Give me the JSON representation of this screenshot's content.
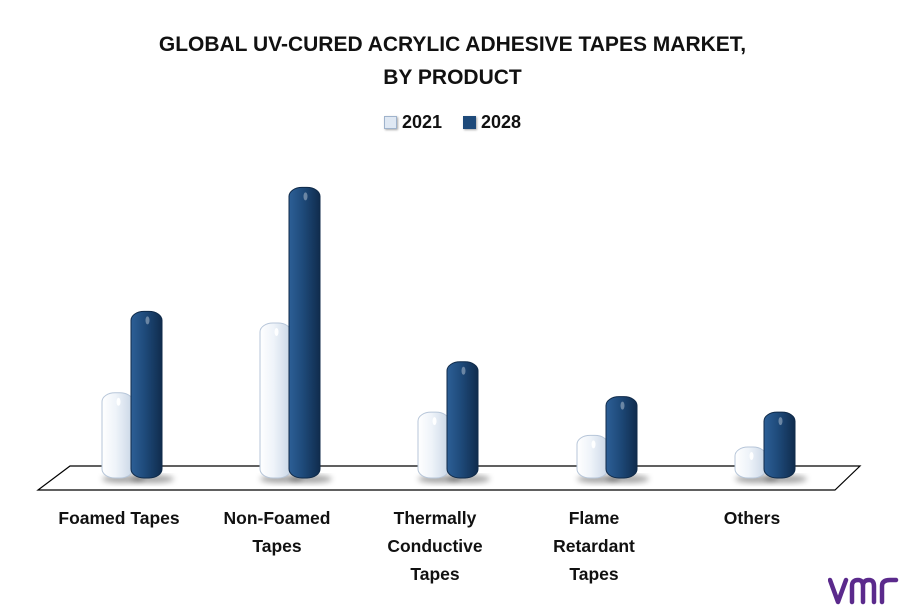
{
  "title_line1": "GLOBAL UV-CURED ACRYLIC ADHESIVE TAPES MARKET,",
  "title_line2": "BY PRODUCT",
  "colors": {
    "series_2021": "#dfe8f3",
    "series_2028": "#1e4a7a",
    "logo": "#5b2a8c"
  },
  "chart_data": {
    "type": "bar",
    "title": "GLOBAL UV-CURED ACRYLIC ADHESIVE TAPES MARKET, BY PRODUCT",
    "categories": [
      "Foamed Tapes",
      "Non-Foamed Tapes",
      "Thermally Conductive Tapes",
      "Flame Retardant Tapes",
      "Others"
    ],
    "category_lines": [
      [
        "Foamed Tapes"
      ],
      [
        "Non-Foamed",
        "Tapes"
      ],
      [
        "Thermally",
        "Conductive",
        "Tapes"
      ],
      [
        "Flame",
        "Retardant",
        "Tapes"
      ],
      [
        "Others"
      ]
    ],
    "series": [
      {
        "name": "2021",
        "values": [
          22,
          40,
          17,
          11,
          8
        ]
      },
      {
        "name": "2028",
        "values": [
          43,
          75,
          30,
          21,
          17
        ]
      }
    ],
    "ylim": [
      0,
      80
    ],
    "xlabel": "",
    "ylabel": "",
    "grid": false,
    "legend_position": "top"
  }
}
